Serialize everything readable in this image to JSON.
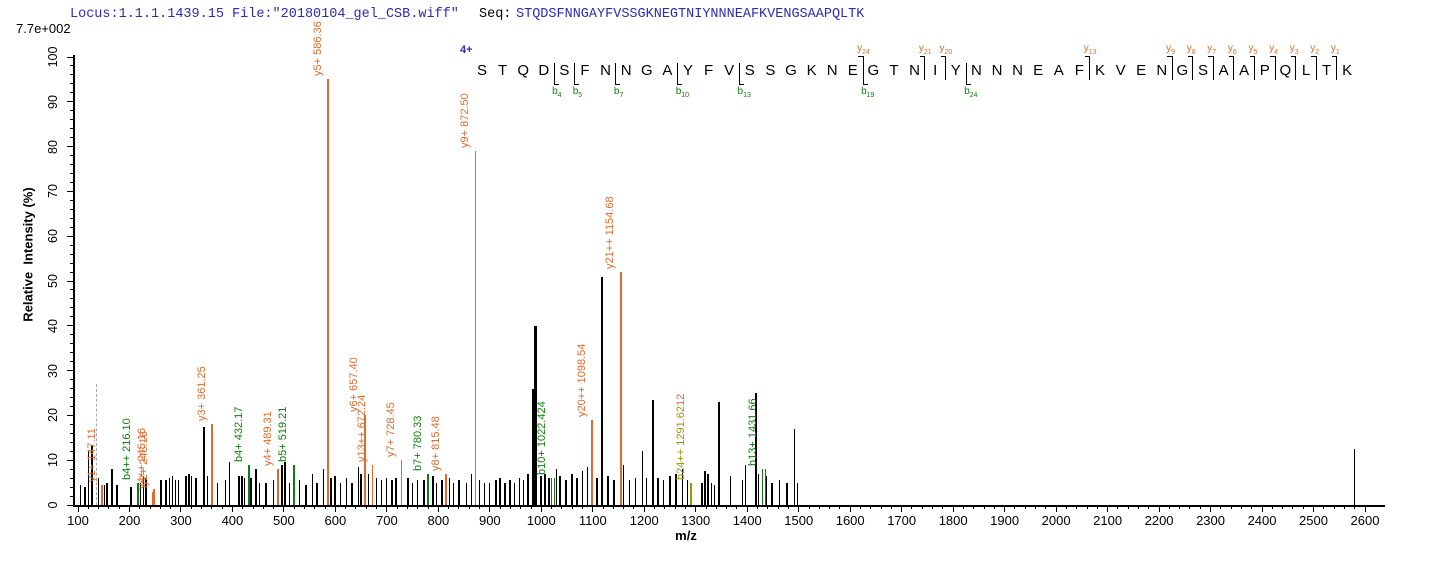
{
  "header": {
    "locus_file": "Locus:1.1.1.1439.15 File:\"20180104_gel_CSB.wiff\"",
    "seq_label": "Seq:",
    "sequence": "STQDSFNNGAYFVSSGKNEGTNIYNNNEAFKVENGSAAPQLTK"
  },
  "max_intensity_label": "7.7e+002",
  "chart_data": {
    "type": "bar",
    "subtype": "ms2-mass-spectrum",
    "title": "",
    "xlabel": "m/z",
    "ylabel": "Relative  Intensity (%)",
    "xlim": [
      100,
      2600
    ],
    "ylim": [
      0,
      100
    ],
    "x_major_tick_step": 100,
    "x_minor_tick_step": 20,
    "y_major_tick_step": 10,
    "y_minor_tick_step": 2,
    "grid": "off",
    "colors": {
      "y_ion": "#DC6B2D",
      "b_ion": "#0E7E0E",
      "peak_black": "#000000",
      "overlap_ion": "#999900",
      "header_blue": "#2B2BB8",
      "dashed_marker": "#A9A9A9"
    },
    "precursor": {
      "charge_label": "4+"
    },
    "peptide": {
      "residues": "STQDSFNNGAYFVSSGKNEGTNIYNNNEAFKVENGSAAPQLTK",
      "fragments": [
        {
          "after": 4,
          "b": 4
        },
        {
          "after": 5,
          "b": 5
        },
        {
          "after": 7,
          "b": 7
        },
        {
          "after": 10,
          "b": 10
        },
        {
          "after": 13,
          "b": 13
        },
        {
          "after": 19,
          "b": 19,
          "y": 24
        },
        {
          "after": 22,
          "y": 21
        },
        {
          "after": 23,
          "y": 20
        },
        {
          "after": 24,
          "b": 24
        },
        {
          "after": 30,
          "y": 13
        },
        {
          "after": 34,
          "y": 9
        },
        {
          "after": 35,
          "y": 8
        },
        {
          "after": 36,
          "y": 7
        },
        {
          "after": 37,
          "y": 6
        },
        {
          "after": 38,
          "y": 5
        },
        {
          "after": 39,
          "y": 4
        },
        {
          "after": 40,
          "y": 3
        },
        {
          "after": 41,
          "y": 2
        },
        {
          "after": 42,
          "y": 1
        }
      ]
    },
    "dashed_marker": {
      "mz": 135,
      "pct": 27
    },
    "labeled_peaks": [
      {
        "ion": "y1+",
        "mz": 147.11,
        "pct": 4.5,
        "type": "y",
        "label": "y1+ 147.11"
      },
      {
        "ion": "b4++",
        "mz": 216.1,
        "pct": 5,
        "type": "b",
        "label": "b4++ 216.10"
      },
      {
        "ion": "y4++",
        "mz": 245.16,
        "pct": 3,
        "type": "y",
        "label": "y4++ 245.16"
      },
      {
        "ion": "y2+",
        "mz": 248.16,
        "pct": 3.5,
        "type": "y",
        "label": "y2+ 248.16"
      },
      {
        "ion": "y3+",
        "mz": 361.25,
        "pct": 18,
        "type": "y",
        "label": "y3+ 361.25"
      },
      {
        "ion": "b4+",
        "mz": 432.17,
        "pct": 9,
        "type": "b",
        "label": "b4+ 432.17"
      },
      {
        "ion": "y4+",
        "mz": 489.31,
        "pct": 8,
        "type": "y",
        "label": "y4+ 489.31"
      },
      {
        "ion": "b5+",
        "mz": 519.21,
        "pct": 9,
        "type": "b",
        "label": "b5+ 519.21"
      },
      {
        "ion": "y5+",
        "mz": 586.36,
        "pct": 95,
        "type": "y",
        "label": "y5+ 586.36"
      },
      {
        "ion": "y6+",
        "mz": 657.4,
        "pct": 20,
        "type": "y",
        "label": "y6+ 657.40"
      },
      {
        "ion": "y13++",
        "mz": 672.24,
        "pct": 9,
        "type": "y",
        "label": "y13++ 672.24"
      },
      {
        "ion": "y7+",
        "mz": 728.45,
        "pct": 10,
        "type": "y",
        "label": "y7+ 728.45"
      },
      {
        "ion": "b7+",
        "mz": 780.33,
        "pct": 7,
        "type": "b",
        "label": "b7+ 780.33"
      },
      {
        "ion": "y8+",
        "mz": 815.48,
        "pct": 7,
        "type": "y",
        "label": "y8+ 815.48"
      },
      {
        "ion": "y9+",
        "mz": 872.5,
        "pct": 79,
        "type": "y",
        "label": "y9+ 872.50"
      },
      {
        "ion": "b10+",
        "mz": 1022.424,
        "pct": 6,
        "type": "b",
        "label": "b10+ 1022.424",
        "double": true
      },
      {
        "ion": "y20++",
        "mz": 1098.54,
        "pct": 19,
        "type": "y",
        "label": "y20++ 1098.54"
      },
      {
        "ion": "y21++",
        "mz": 1154.68,
        "pct": 52,
        "type": "y",
        "label": "y21++ 1154.68"
      },
      {
        "ion": "b24++",
        "mz": 1291.62,
        "pct": 5,
        "type": "overlap",
        "label": "b24++ 1291.62",
        "label_suffix": "12",
        "suffix_type": "y"
      },
      {
        "ion": "b13+",
        "mz": 1431.66,
        "pct": 8,
        "type": "b",
        "label": "b13+ 1431.66",
        "double": true
      }
    ],
    "unlabeled_peaks": [
      [
        105,
        4.5
      ],
      [
        114,
        4
      ],
      [
        121,
        12
      ],
      [
        128,
        13.5
      ],
      [
        140,
        6
      ],
      [
        152,
        4.5
      ],
      [
        157,
        5
      ],
      [
        166,
        8
      ],
      [
        176,
        4.5
      ],
      [
        203,
        4
      ],
      [
        222,
        5
      ],
      [
        228,
        6.5
      ],
      [
        232,
        6
      ],
      [
        262,
        5.5
      ],
      [
        271,
        5.5
      ],
      [
        278,
        6
      ],
      [
        284,
        6.5
      ],
      [
        290,
        5.5
      ],
      [
        296,
        5.5
      ],
      [
        310,
        6.5
      ],
      [
        316,
        7
      ],
      [
        321,
        6.5
      ],
      [
        330,
        6
      ],
      [
        345,
        17.5
      ],
      [
        352,
        6.5
      ],
      [
        371,
        5
      ],
      [
        387,
        5.5
      ],
      [
        395,
        9.5
      ],
      [
        413,
        6.5
      ],
      [
        419,
        6.5
      ],
      [
        424,
        6
      ],
      [
        437,
        6
      ],
      [
        446,
        8
      ],
      [
        453,
        5
      ],
      [
        466,
        5
      ],
      [
        480,
        5.5
      ],
      [
        497,
        9
      ],
      [
        503,
        9.5
      ],
      [
        511,
        5
      ],
      [
        531,
        5.5
      ],
      [
        543,
        4.5
      ],
      [
        556,
        7
      ],
      [
        565,
        5
      ],
      [
        577,
        8
      ],
      [
        592,
        6
      ],
      [
        600,
        6.5
      ],
      [
        610,
        5
      ],
      [
        622,
        6
      ],
      [
        633,
        5
      ],
      [
        645,
        8.5
      ],
      [
        650,
        7
      ],
      [
        665,
        7
      ],
      [
        680,
        6
      ],
      [
        690,
        5.5
      ],
      [
        700,
        6
      ],
      [
        710,
        5.5
      ],
      [
        718,
        6
      ],
      [
        741,
        6
      ],
      [
        750,
        5
      ],
      [
        760,
        5.5
      ],
      [
        772,
        5.5
      ],
      [
        790,
        6.5
      ],
      [
        797,
        5
      ],
      [
        808,
        5.5
      ],
      [
        822,
        6
      ],
      [
        830,
        5
      ],
      [
        840,
        5.5
      ],
      [
        855,
        5
      ],
      [
        865,
        7
      ],
      [
        880,
        5.5
      ],
      [
        890,
        5
      ],
      [
        900,
        5
      ],
      [
        912,
        5.5
      ],
      [
        920,
        6
      ],
      [
        930,
        5
      ],
      [
        940,
        5.5
      ],
      [
        948,
        5
      ],
      [
        958,
        6
      ],
      [
        966,
        5.5
      ],
      [
        975,
        7
      ],
      [
        983,
        26
      ],
      [
        988,
        40
      ],
      [
        1000,
        6.5
      ],
      [
        1008,
        7
      ],
      [
        1015,
        6
      ],
      [
        1030,
        8
      ],
      [
        1037,
        6.5
      ],
      [
        1048,
        5.5
      ],
      [
        1060,
        7
      ],
      [
        1070,
        6
      ],
      [
        1080,
        7.5
      ],
      [
        1090,
        8.5
      ],
      [
        1108,
        6
      ],
      [
        1118,
        51
      ],
      [
        1130,
        6.5
      ],
      [
        1142,
        5.5
      ],
      [
        1160,
        9
      ],
      [
        1172,
        5.5
      ],
      [
        1183,
        6
      ],
      [
        1197,
        12
      ],
      [
        1205,
        6
      ],
      [
        1216,
        23.5
      ],
      [
        1227,
        6
      ],
      [
        1238,
        5.5
      ],
      [
        1250,
        6.5
      ],
      [
        1262,
        7
      ],
      [
        1275,
        8
      ],
      [
        1284,
        5.5
      ],
      [
        1313,
        5
      ],
      [
        1318,
        7.5
      ],
      [
        1324,
        7
      ],
      [
        1331,
        5
      ],
      [
        1337,
        4.5
      ],
      [
        1345,
        23
      ],
      [
        1368,
        6.5
      ],
      [
        1391,
        5.5
      ],
      [
        1397,
        9
      ],
      [
        1417,
        25
      ],
      [
        1422,
        7
      ],
      [
        1438,
        6.5
      ],
      [
        1449,
        5
      ],
      [
        1463,
        5.5
      ],
      [
        1478,
        5
      ],
      [
        1492,
        17
      ],
      [
        1498,
        5
      ],
      [
        2580,
        12.5
      ]
    ]
  }
}
